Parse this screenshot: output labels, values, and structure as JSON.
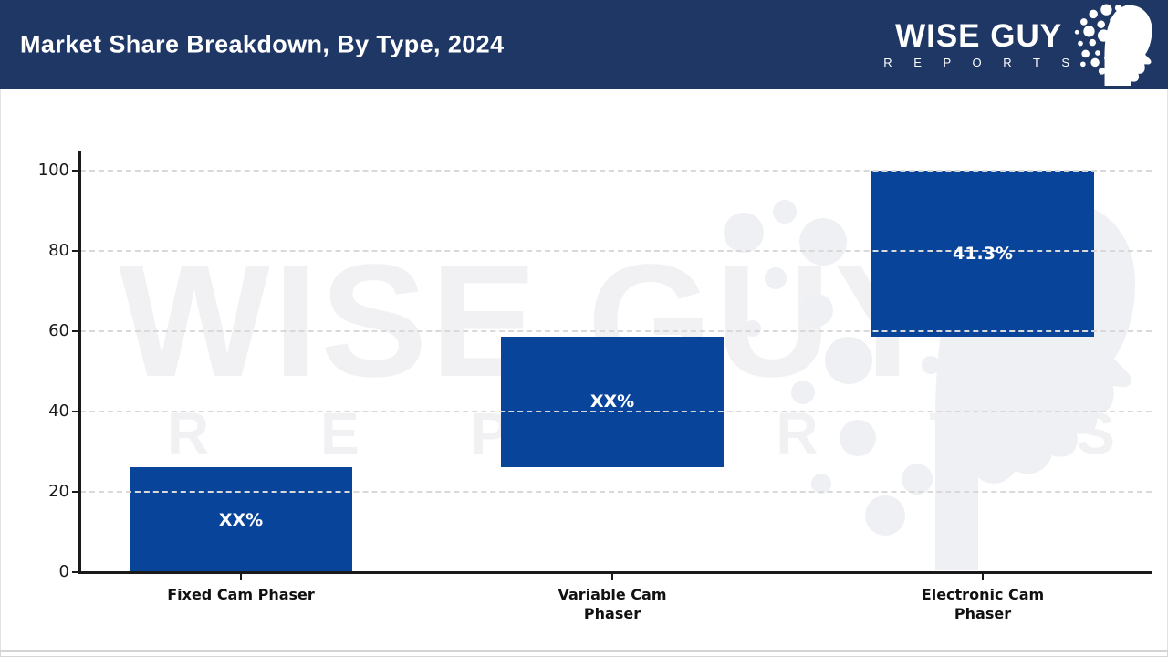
{
  "header": {
    "title": "Market Share Breakdown, By Type, 2024",
    "logo": {
      "line1": "WISE GUY",
      "line2": "R E P O R T S"
    }
  },
  "watermark": {
    "line1": "WISE GUY",
    "line2": "R E P O R T S"
  },
  "chart_data": {
    "type": "bar",
    "subtype": "stacked-waterfall",
    "title": "Market Share Breakdown, By Type, 2024",
    "categories": [
      "Fixed Cam Phaser",
      "Variable Cam Phaser",
      "Electronic Cam Phaser"
    ],
    "category_lines": [
      [
        "Fixed Cam Phaser"
      ],
      [
        "Variable Cam",
        "Phaser"
      ],
      [
        "Electronic Cam",
        "Phaser"
      ]
    ],
    "values": [
      26.1,
      32.6,
      41.3
    ],
    "segments": [
      {
        "category": "Fixed Cam Phaser",
        "start": 0,
        "end": 26.1,
        "label": "XX%"
      },
      {
        "category": "Variable Cam Phaser",
        "start": 26.1,
        "end": 58.7,
        "label": "XX%"
      },
      {
        "category": "Electronic Cam Phaser",
        "start": 58.7,
        "end": 100,
        "label": "41.3%"
      }
    ],
    "yticks": [
      0,
      20,
      40,
      60,
      80,
      100
    ],
    "ylim": [
      0,
      100
    ],
    "grid": "horizontal-dashed",
    "legend": "none",
    "bar_color": "#09449b",
    "header_color": "#1f3765",
    "grid_color": "#d9d9d9"
  }
}
